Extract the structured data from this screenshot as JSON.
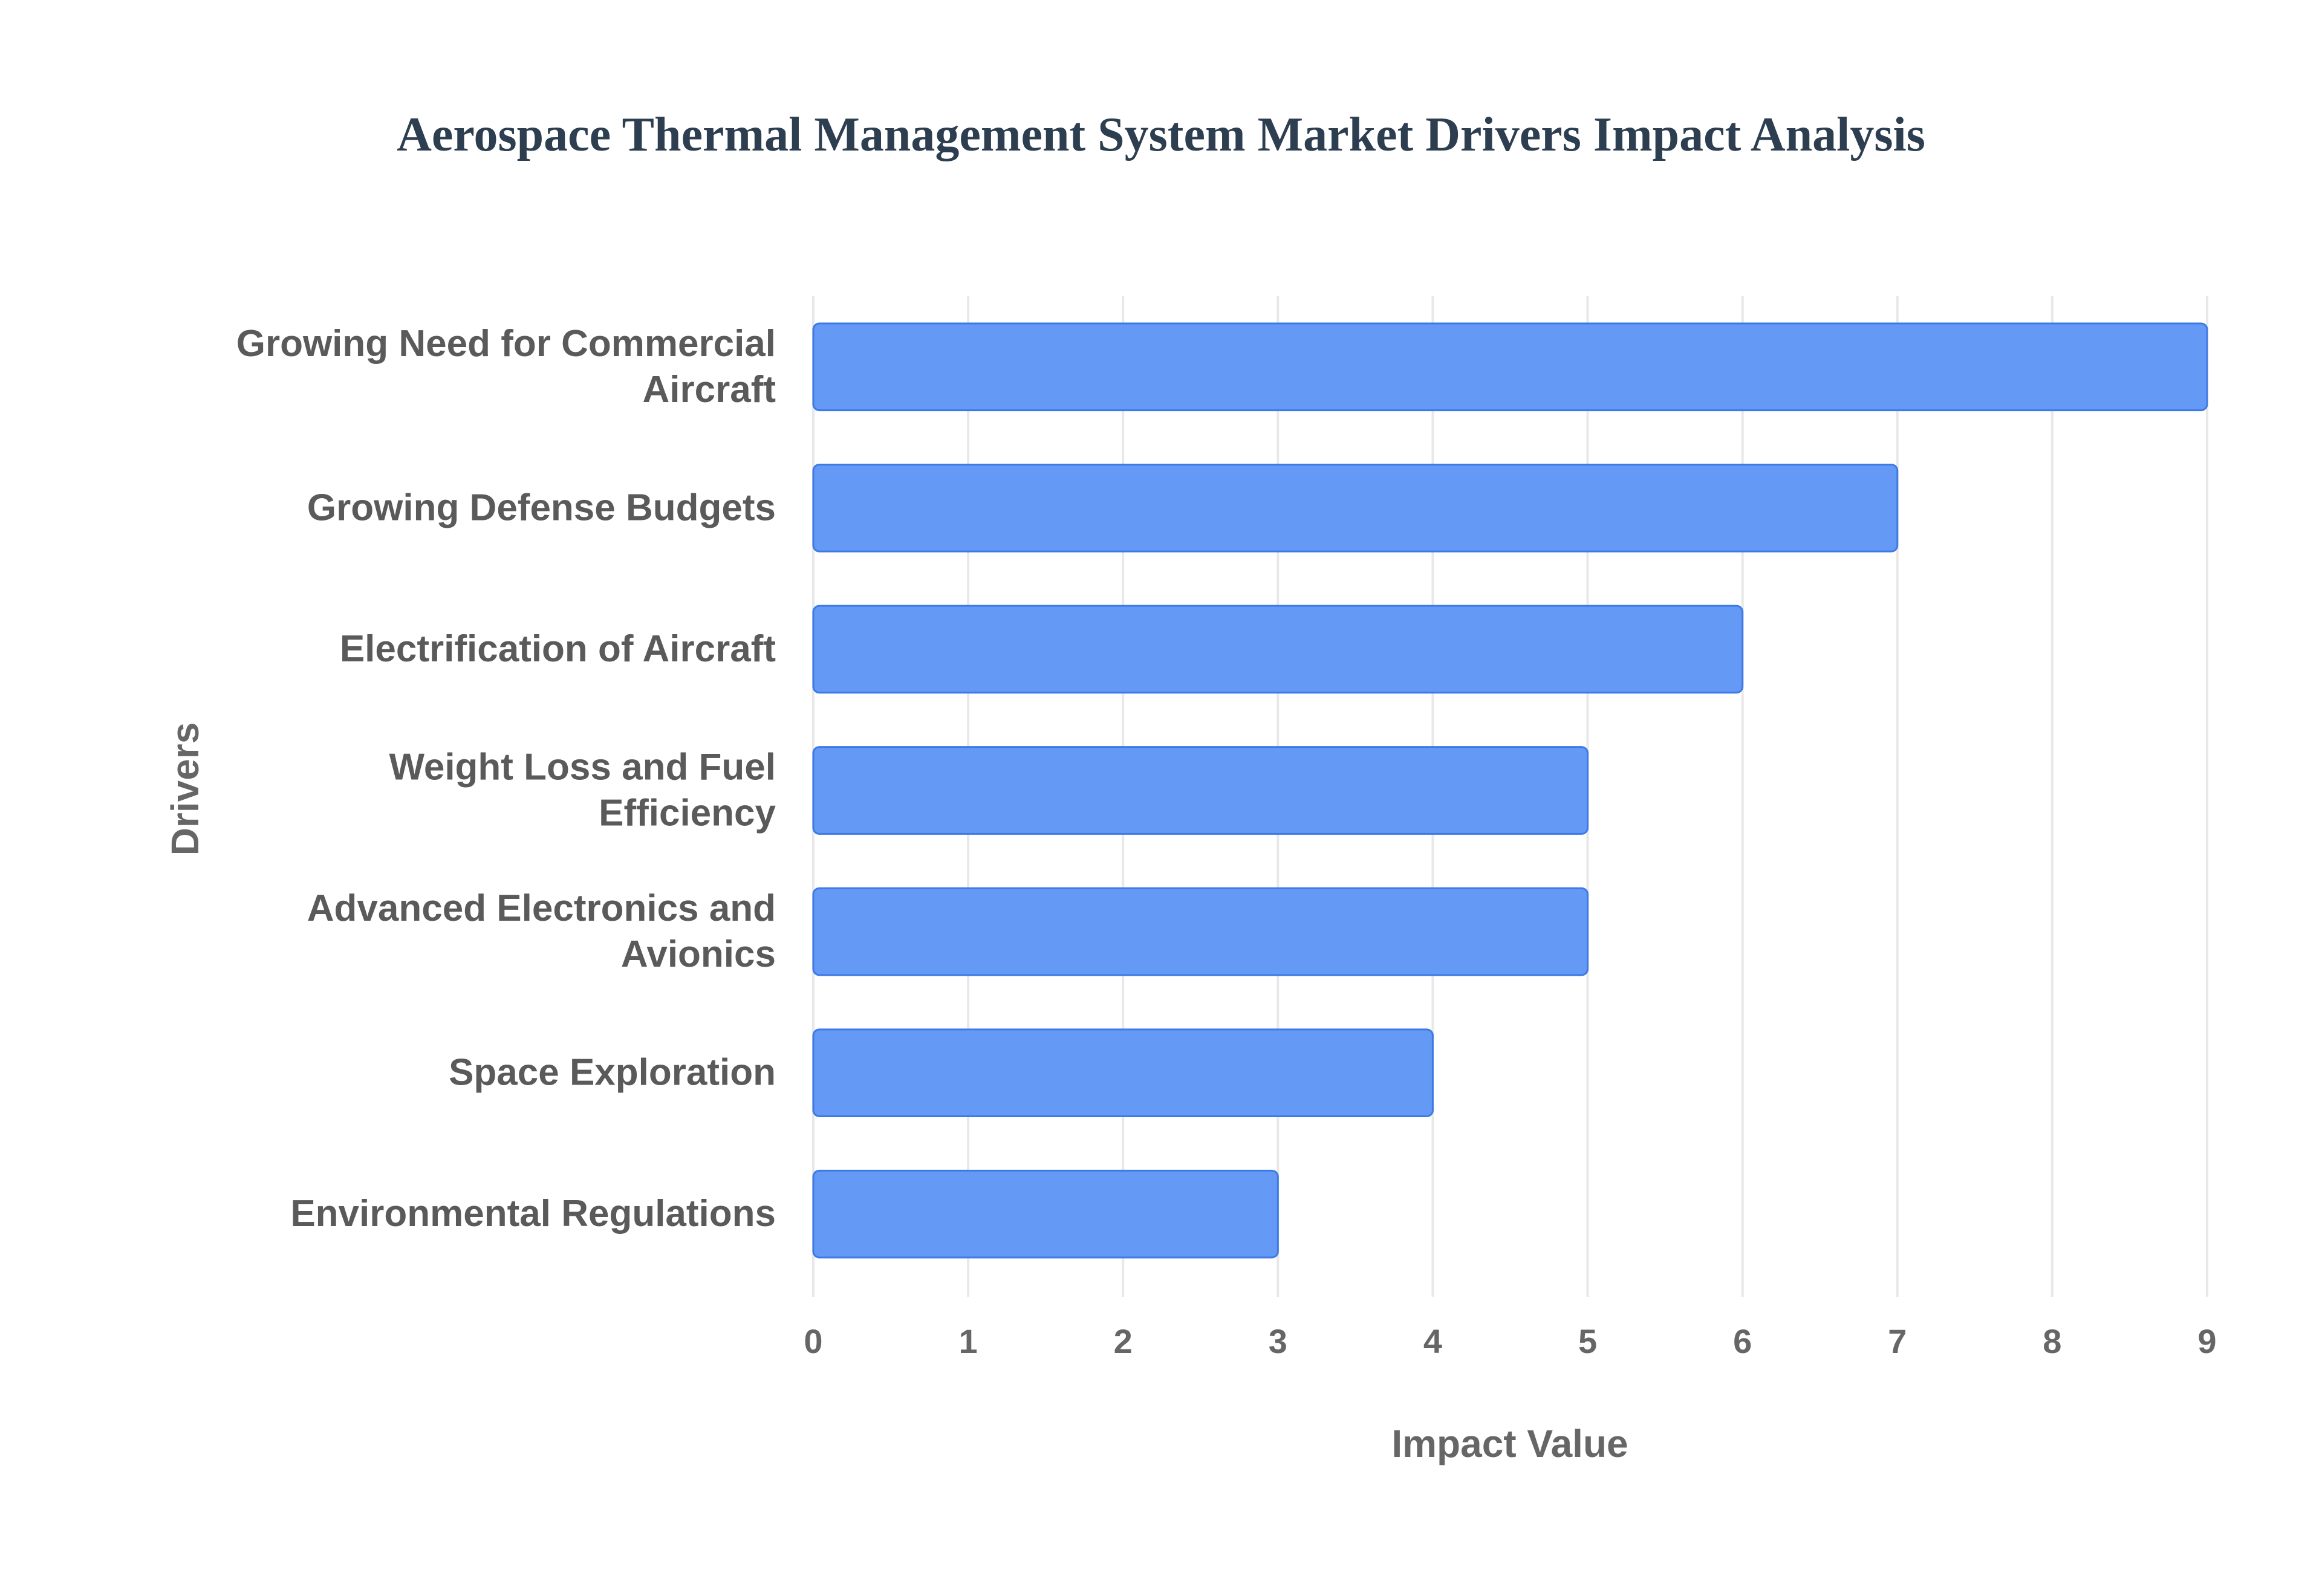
{
  "chart_data": {
    "type": "bar",
    "orientation": "horizontal",
    "title": "Aerospace Thermal Management System Market Drivers Impact Analysis",
    "xlabel": "Impact Value",
    "ylabel": "Drivers",
    "categories": [
      [
        "Growing Need for Commercial",
        "Aircraft"
      ],
      [
        "Growing Defense Budgets"
      ],
      [
        "Electrification of Aircraft"
      ],
      [
        "Weight Loss and Fuel",
        "Efficiency"
      ],
      [
        "Advanced Electronics and",
        "Avionics"
      ],
      [
        "Space Exploration"
      ],
      [
        "Environmental Regulations"
      ]
    ],
    "values": [
      9,
      7,
      6,
      5,
      5,
      4,
      3
    ],
    "xlim": [
      0,
      9
    ],
    "xticks": [
      "0",
      "1",
      "2",
      "3",
      "4",
      "5",
      "6",
      "7",
      "8",
      "9"
    ],
    "grid": true,
    "colors": {
      "bar": "#6499f5",
      "bar_edge": "#3e7ae6",
      "grid": "#e8e8e8"
    }
  }
}
